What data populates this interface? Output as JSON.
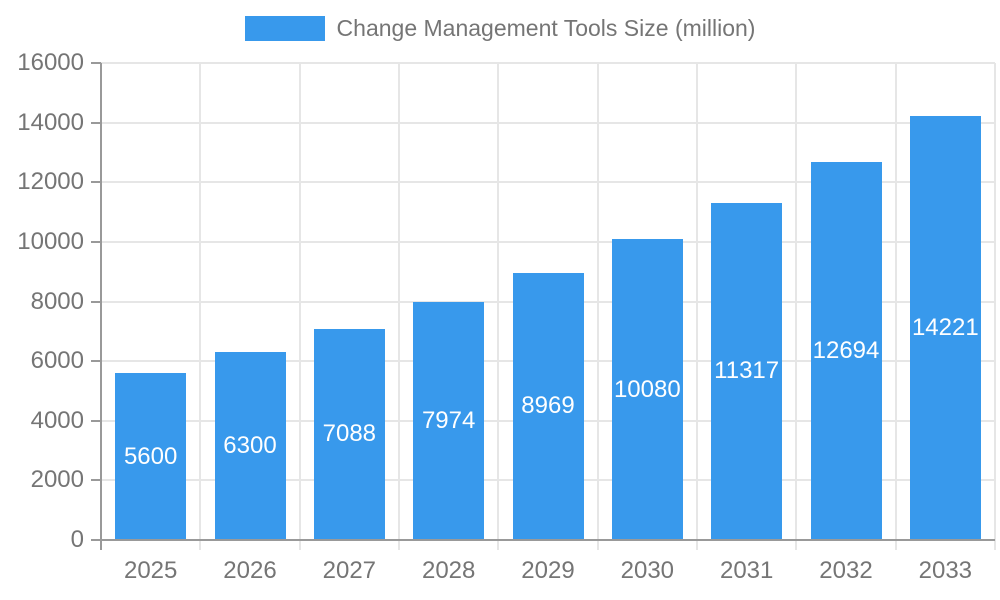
{
  "colors": {
    "bar": "#3899EC",
    "grid": "#E6E6E6",
    "axis": "#999999",
    "text": "#757575",
    "bar_label": "#FFFFFF",
    "background": "#FFFFFF"
  },
  "chart_data": {
    "type": "bar",
    "title": "Change Management Tools Size (million)",
    "categories": [
      "2025",
      "2026",
      "2027",
      "2028",
      "2029",
      "2030",
      "2031",
      "2032",
      "2033"
    ],
    "values": [
      5600,
      6300,
      7088,
      7974,
      8969,
      10080,
      11317,
      12694,
      14221
    ],
    "xlabel": "",
    "ylabel": "",
    "ylim": [
      0,
      16000
    ],
    "yticks": [
      0,
      2000,
      4000,
      6000,
      8000,
      10000,
      12000,
      14000,
      16000
    ],
    "grid": true,
    "bar_labels_visible": true,
    "legend": {
      "position": "top",
      "label": "Change Management Tools Size (million)"
    }
  }
}
